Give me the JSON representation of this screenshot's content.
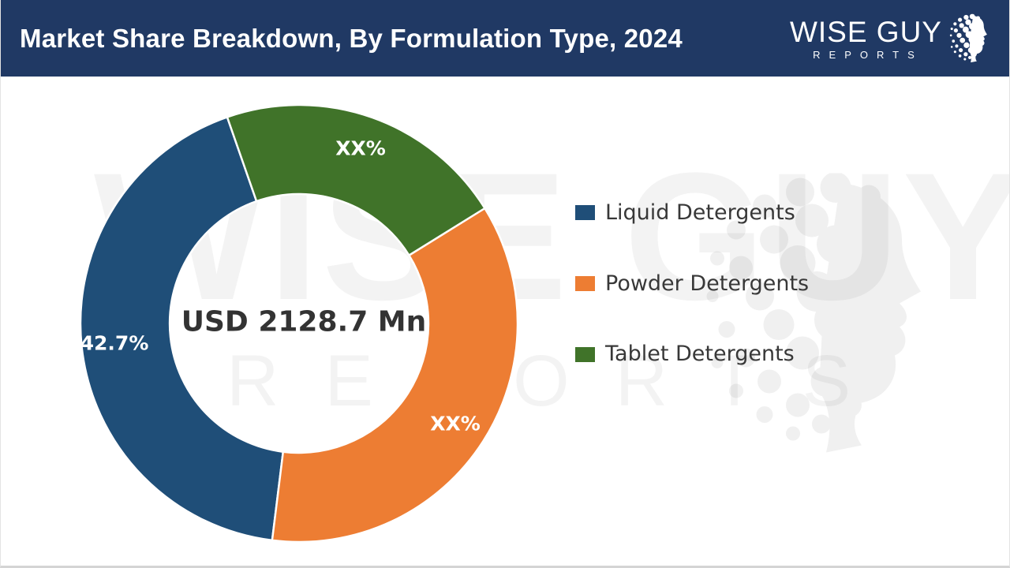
{
  "header": {
    "title": "Market Share Breakdown, By Formulation Type, 2024",
    "bg_color": "#203964",
    "logo": {
      "line1": "WISE GUY",
      "line2": "REPORTS"
    }
  },
  "watermark": {
    "line1": "WISE GUY",
    "line2": "REPORTS"
  },
  "chart_data": {
    "type": "pie",
    "subtype": "donut",
    "title": "Market Share Breakdown, By Formulation Type, 2024",
    "center_label": "USD 2128.7 Mn",
    "legend_position": "right",
    "start_angle_deg_clockwise_from_top": -19.2,
    "direction": "counterclockwise",
    "segments": [
      {
        "label": "Liquid Detergents",
        "display_pct": "42.7%",
        "pct": 42.7,
        "pct_estimated": false,
        "color": "#1F4E78"
      },
      {
        "label": "Powder Detergents",
        "display_pct": "XX%",
        "pct": 35.8,
        "pct_estimated": true,
        "color": "#ED7D33"
      },
      {
        "label": "Tablet Detergents",
        "display_pct": "XX%",
        "pct": 21.5,
        "pct_estimated": true,
        "color": "#407329"
      }
    ],
    "colors": {
      "blue": "#1F4E78",
      "orange": "#ED7D33",
      "green": "#407329",
      "center_text": "#333333"
    }
  }
}
